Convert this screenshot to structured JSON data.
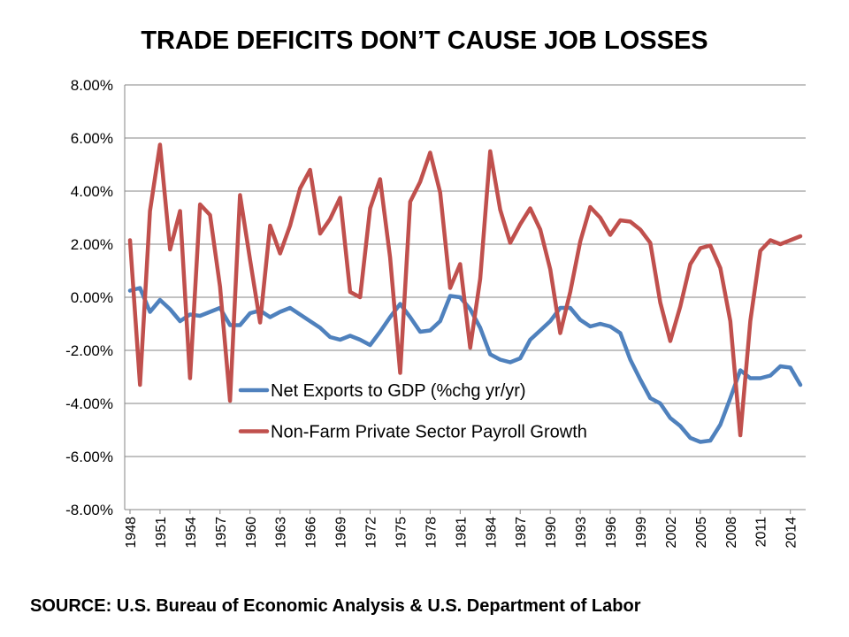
{
  "title": "TRADE DEFICITS DON’T CAUSE JOB LOSSES",
  "source": "SOURCE:  U.S. Bureau of Economic Analysis & U.S. Department of Labor",
  "chart_data": {
    "type": "line",
    "title": "TRADE DEFICITS DON’T CAUSE JOB LOSSES",
    "x": [
      1948,
      1949,
      1950,
      1951,
      1952,
      1953,
      1954,
      1955,
      1956,
      1957,
      1958,
      1959,
      1960,
      1961,
      1962,
      1963,
      1964,
      1965,
      1966,
      1967,
      1968,
      1969,
      1970,
      1971,
      1972,
      1973,
      1974,
      1975,
      1976,
      1977,
      1978,
      1979,
      1980,
      1981,
      1982,
      1983,
      1984,
      1985,
      1986,
      1987,
      1988,
      1989,
      1990,
      1991,
      1992,
      1993,
      1994,
      1995,
      1996,
      1997,
      1998,
      1999,
      2000,
      2001,
      2002,
      2003,
      2004,
      2005,
      2006,
      2007,
      2008,
      2009,
      2010,
      2011,
      2012,
      2013,
      2014,
      2015
    ],
    "x_tick_labels": [
      "1948",
      "1951",
      "1954",
      "1957",
      "1960",
      "1963",
      "1966",
      "1969",
      "1972",
      "1975",
      "1978",
      "1981",
      "1984",
      "1987",
      "1990",
      "1993",
      "1996",
      "1999",
      "2002",
      "2005",
      "2008",
      "2011",
      "2014"
    ],
    "ylim": [
      -8,
      8
    ],
    "y_tick_values": [
      8,
      6,
      4,
      2,
      0,
      -2,
      -4,
      -6,
      -8
    ],
    "y_tick_labels": [
      "8.00%",
      "6.00%",
      "4.00%",
      "2.00%",
      "0.00%",
      "-2.00%",
      "-4.00%",
      "-6.00%",
      "-8.00%"
    ],
    "grid": true,
    "legend_position": "inside lower-center",
    "series": [
      {
        "name": "Net Exports to GDP (%chg yr/yr)",
        "color": "#4f81bd",
        "values": [
          0.25,
          0.35,
          -0.55,
          -0.1,
          -0.45,
          -0.9,
          -0.65,
          -0.7,
          -0.55,
          -0.4,
          -1.05,
          -1.05,
          -0.6,
          -0.5,
          -0.75,
          -0.55,
          -0.4,
          -0.65,
          -0.9,
          -1.15,
          -1.5,
          -1.6,
          -1.45,
          -1.6,
          -1.8,
          -1.3,
          -0.75,
          -0.25,
          -0.75,
          -1.3,
          -1.25,
          -0.9,
          0.05,
          0.0,
          -0.45,
          -1.15,
          -2.15,
          -2.35,
          -2.45,
          -2.3,
          -1.6,
          -1.25,
          -0.9,
          -0.4,
          -0.4,
          -0.85,
          -1.1,
          -1.0,
          -1.1,
          -1.35,
          -2.35,
          -3.1,
          -3.8,
          -4.0,
          -4.55,
          -4.85,
          -5.3,
          -5.45,
          -5.4,
          -4.8,
          -3.8,
          -2.75,
          -3.05,
          -3.05,
          -2.95,
          -2.6,
          -2.65,
          -3.3
        ]
      },
      {
        "name": "Non-Farm Private Sector Payroll Growth",
        "color": "#c0504d",
        "values": [
          2.15,
          -3.3,
          3.25,
          5.75,
          1.8,
          3.25,
          -3.05,
          3.5,
          3.1,
          0.4,
          -3.9,
          3.85,
          1.4,
          -0.95,
          2.7,
          1.65,
          2.7,
          4.1,
          4.8,
          2.4,
          2.95,
          3.75,
          0.2,
          0.0,
          3.35,
          4.45,
          1.5,
          -2.85,
          3.6,
          4.35,
          5.45,
          3.95,
          0.35,
          1.25,
          -1.9,
          0.7,
          5.5,
          3.3,
          2.05,
          2.75,
          3.35,
          2.55,
          1.05,
          -1.35,
          0.2,
          2.1,
          3.4,
          3.0,
          2.35,
          2.9,
          2.85,
          2.55,
          2.05,
          -0.2,
          -1.65,
          -0.35,
          1.25,
          1.85,
          1.95,
          1.1,
          -0.9,
          -5.2,
          -0.9,
          1.75,
          2.15,
          2.0,
          2.15,
          2.3
        ]
      }
    ]
  }
}
